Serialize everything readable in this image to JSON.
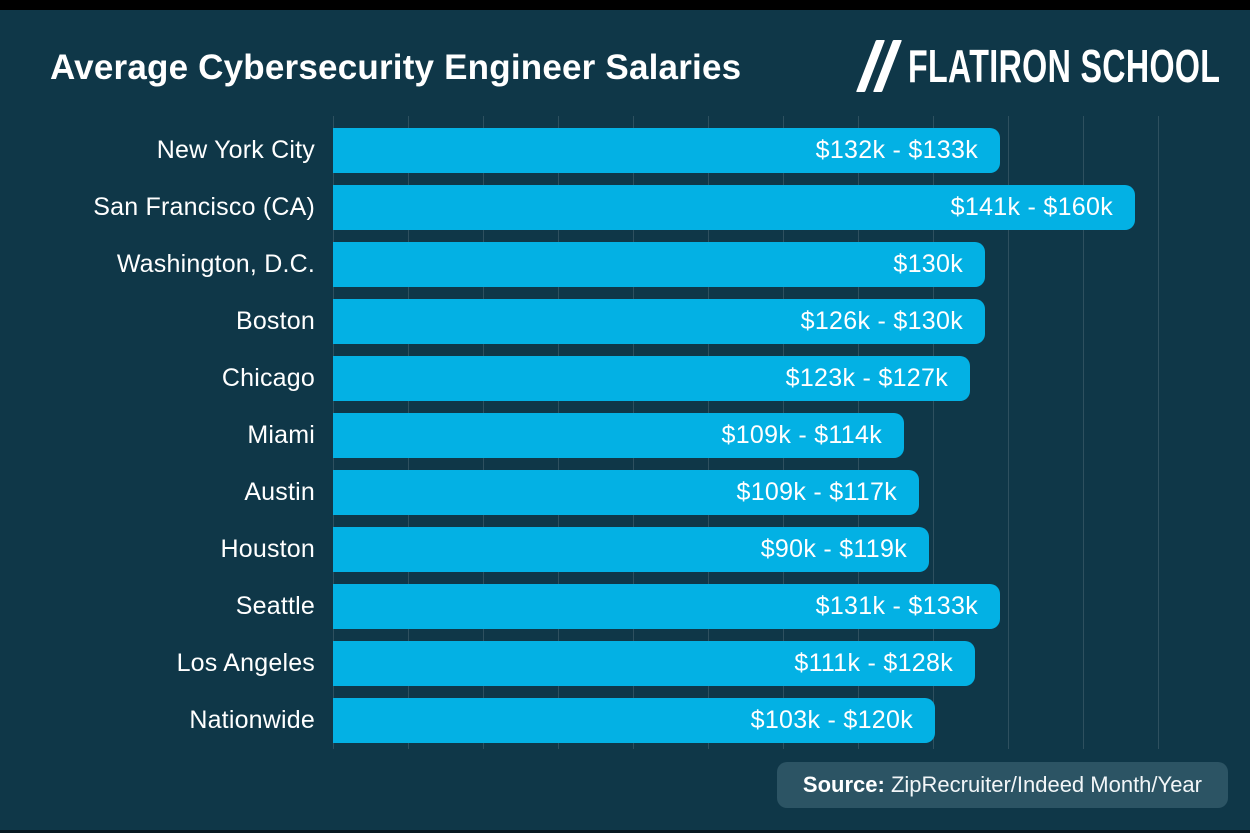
{
  "header": {
    "title": "Average Cybersecurity Engineer Salaries",
    "logo": {
      "slashes": "//",
      "text": "FLATIRON SCHOOL"
    }
  },
  "chart_data": {
    "type": "bar",
    "orientation": "horizontal",
    "title": "Average Cybersecurity Engineer Salaries",
    "unit": "USD thousands per year",
    "xlim": [
      0,
      160
    ],
    "grid": true,
    "gridline_count": 12,
    "bar_color": "#03B1E4",
    "background_color": "#0F3748",
    "gridline_color": "rgba(255,255,255,0.13)",
    "categories": [
      "New York City",
      "San Francisco (CA)",
      "Washington, D.C.",
      "Boston",
      "Chicago",
      "Miami",
      "Austin",
      "Houston",
      "Seattle",
      "Los Angeles",
      "Nationwide"
    ],
    "rows": [
      {
        "city": "New York City",
        "range": "$132k - $133k",
        "low": 132,
        "high": 133
      },
      {
        "city": "San Francisco (CA)",
        "range": "$141k - $160k",
        "low": 141,
        "high": 160
      },
      {
        "city": "Washington, D.C.",
        "range": "$130k",
        "low": 130,
        "high": 130
      },
      {
        "city": "Boston",
        "range": "$126k - $130k",
        "low": 126,
        "high": 130
      },
      {
        "city": "Chicago",
        "range": "$123k - $127k",
        "low": 123,
        "high": 127
      },
      {
        "city": "Miami",
        "range": "$109k - $114k",
        "low": 109,
        "high": 114
      },
      {
        "city": "Austin",
        "range": "$109k - $117k",
        "low": 109,
        "high": 117
      },
      {
        "city": "Houston",
        "range": "$90k - $119k",
        "low": 90,
        "high": 119
      },
      {
        "city": "Seattle",
        "range": "$131k - $133k",
        "low": 131,
        "high": 133
      },
      {
        "city": "Los Angeles",
        "range": "$111k - $128k",
        "low": 111,
        "high": 128
      },
      {
        "city": "Nationwide",
        "range": "$103k - $120k",
        "low": 103,
        "high": 120
      }
    ]
  },
  "source": {
    "label": "Source:",
    "text": " ZipRecruiter/Indeed Month/Year"
  }
}
